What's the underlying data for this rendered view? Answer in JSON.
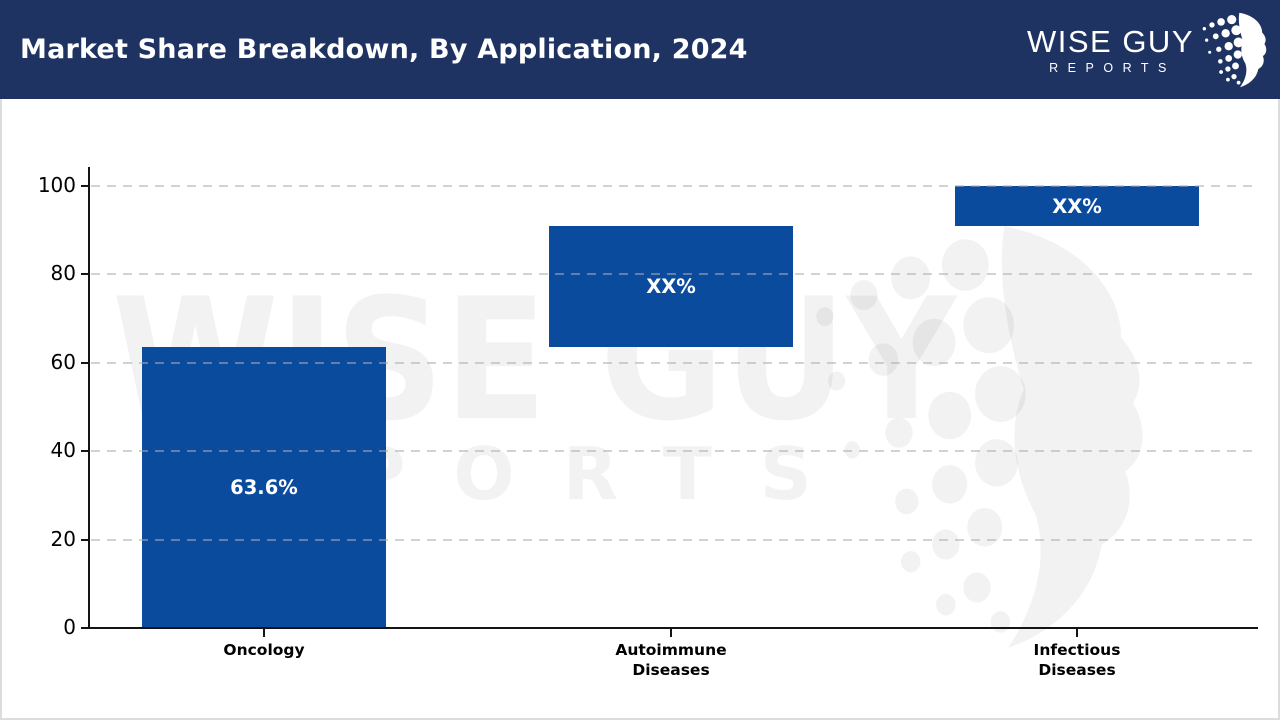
{
  "header": {
    "title": "Market Share Breakdown, By Application, 2024",
    "logo": {
      "name": "WISE GUY",
      "sub": "REPORTS"
    }
  },
  "watermark": {
    "line1": "WISE GUY",
    "line2": "REPORTS"
  },
  "colors": {
    "header_bg": "#1f3363",
    "bar_blue": "#0b4b9e",
    "axis": "#141414",
    "frame_border": "#dcdcdc",
    "value_label_text": "#ffffff"
  },
  "chart_data": {
    "type": "bar",
    "subtype": "stacked-waterfall",
    "title": "Market Share Breakdown, By Application, 2024",
    "categories": [
      "Oncology",
      "Autoimmune\nDiseases",
      "Infectious\nDiseases"
    ],
    "series": [
      {
        "name": "Oncology",
        "start": 0,
        "end": 63.6,
        "label": "63.6%"
      },
      {
        "name": "Autoimmune Diseases",
        "start": 63.6,
        "end": 90.9,
        "label": "XX%"
      },
      {
        "name": "Infectious Diseases",
        "start": 90.9,
        "end": 100,
        "label": "XX%"
      }
    ],
    "xlabel": "",
    "ylabel": "",
    "yticks": [
      0,
      20,
      40,
      60,
      80,
      100
    ],
    "ylim": [
      0,
      104.5
    ],
    "grid": "horizontal-dashed",
    "legend": "none",
    "bar_color": "#0b4b9e"
  }
}
